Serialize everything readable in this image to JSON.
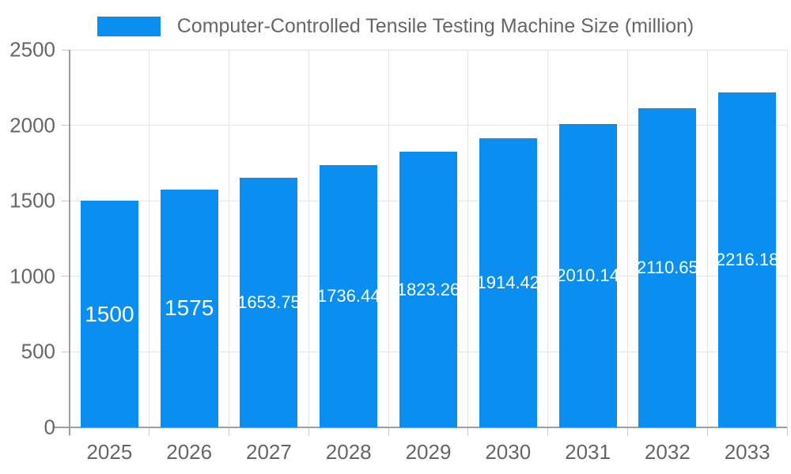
{
  "chart": {
    "legend": {
      "label": "Computer-Controlled Tensile Testing Machine Size (million)"
    }
  },
  "chart_data": {
    "type": "bar",
    "title": "Computer-Controlled Tensile Testing Machine Size (million)",
    "categories": [
      "2025",
      "2026",
      "2027",
      "2028",
      "2029",
      "2030",
      "2031",
      "2032",
      "2033"
    ],
    "values": [
      1500,
      1575,
      1653.75,
      1736.44,
      1823.26,
      1914.42,
      2010.14,
      2110.65,
      2216.18
    ],
    "bar_labels": [
      "1500",
      "1575",
      "1653.75",
      "1736.44",
      "1823.26",
      "1914.42",
      "2010.14",
      "2110.65",
      "2216.18"
    ],
    "xlabel": "",
    "ylabel": "",
    "ylim": [
      0,
      2500
    ],
    "yticks": [
      0,
      500,
      1000,
      1500,
      2000,
      2500
    ],
    "grid": true,
    "legend_position": "top",
    "colors": {
      "bar": "#0a8ff0",
      "value_label": "#ffffff",
      "axis_text": "#666666",
      "grid_line": "#e4e4e4",
      "tick_mark": "#c6c6c6",
      "axis_line": "#9e9e9e",
      "background": "#ffffff"
    }
  }
}
